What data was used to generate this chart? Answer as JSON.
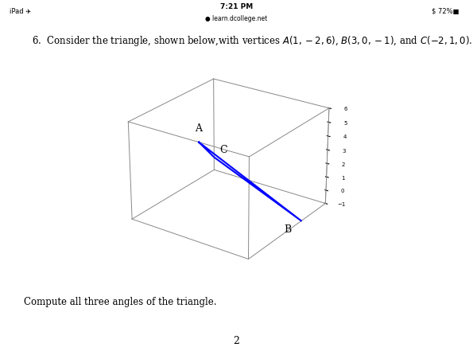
{
  "A": [
    1,
    -2,
    6
  ],
  "B": [
    3,
    0,
    -1
  ],
  "C": [
    -2,
    1,
    0
  ],
  "triangle_color": "blue",
  "box_color": "#888888",
  "label_A": "A",
  "label_B": "B",
  "label_C": "C",
  "footer_text": "Compute all three angles of the triangle.",
  "page_number": "2",
  "background_color": "#e8e8e8",
  "page_background": "#ffffff",
  "xmin": -2,
  "xmax": 3,
  "ymin": -2,
  "ymax": 1,
  "zmin": -1,
  "zmax": 6,
  "elev": 25,
  "azim": -55,
  "title_line1": "6.  Consider the triangle, shown below,with vertices ",
  "title_math": "A(1, -2, 6), B(3, 0, -1), and C(-2, 1, 0)."
}
